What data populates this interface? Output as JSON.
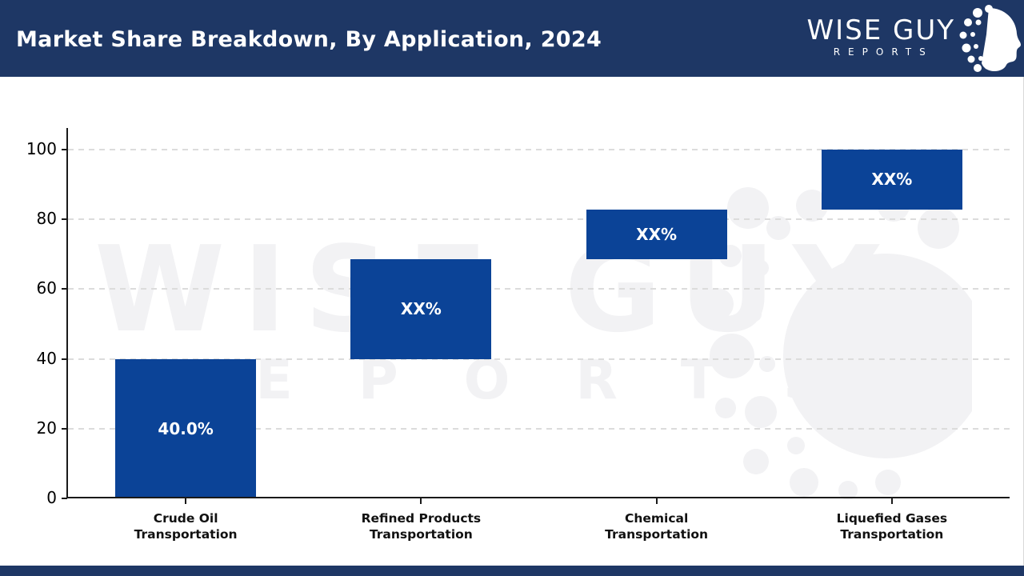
{
  "header": {
    "title": "Market Share Breakdown, By Application, 2024",
    "logo": {
      "line1": "WISE GUY",
      "line2": "REPORTS"
    }
  },
  "watermark": {
    "line1": "WISE GUY",
    "line2": "REPORTS"
  },
  "colors": {
    "header_bg": "#1e3765",
    "footer_bg": "#1e3765",
    "bar": "#0b4397",
    "bar_label": "#ffffff",
    "gridline": "#dcdcdc",
    "axis": "#1a1a1a",
    "watermark": "#f2f2f4"
  },
  "chart_data": {
    "type": "bar",
    "subtype": "floating-waterfall",
    "title": "Market Share Breakdown, By Application, 2024",
    "categories": [
      "Crude Oil\nTransportation",
      "Refined Products\nTransportation",
      "Chemical\nTransportation",
      "Liquefied Gases\nTransportation"
    ],
    "segments": [
      {
        "label": "40.0%",
        "start": 0,
        "end": 40
      },
      {
        "label": "XX%",
        "start": 40,
        "end": 68.6
      },
      {
        "label": "XX%",
        "start": 68.6,
        "end": 82.9
      },
      {
        "label": "XX%",
        "start": 82.9,
        "end": 100
      }
    ],
    "y_ticks": [
      0,
      20,
      40,
      60,
      80,
      100
    ],
    "ylim": [
      0,
      106
    ],
    "xlabel": "",
    "ylabel": "",
    "grid": "horizontal-dashed",
    "legend": "none"
  }
}
